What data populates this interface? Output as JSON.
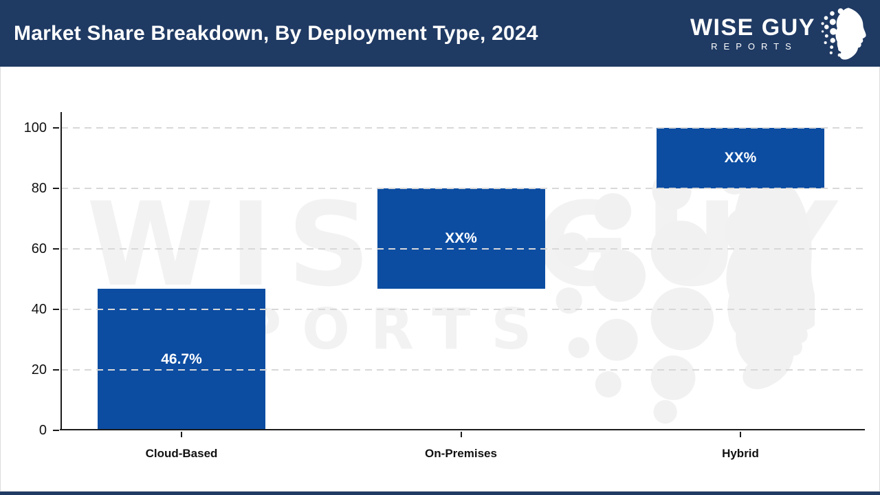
{
  "header": {
    "title": "Market Share Breakdown, By Deployment Type, 2024",
    "logo": {
      "line1": "WISE GUY",
      "line2": "REPORTS",
      "icon": "dotted-face-profile-icon"
    }
  },
  "watermark": {
    "line1": "WISE GUY",
    "line2": "REPORTS",
    "icon": "dotted-face-profile-watermark"
  },
  "colors": {
    "header_bg": "#1f3a63",
    "footer_bar": "#1f3a63",
    "bar": "#0c4da2",
    "gridline": "#d8d8d8",
    "axis": "#1a1a1a",
    "tick_label": "#111111",
    "bar_label": "#ffffff",
    "watermark": "#f2f2f2",
    "background": "#ffffff"
  },
  "chart_data": {
    "type": "bar",
    "subtype": "waterfall",
    "title": "Market Share Breakdown, By Deployment Type, 2024",
    "categories": [
      "Cloud-Based",
      "On-Premises",
      "Hybrid"
    ],
    "bars": [
      {
        "category": "Cloud-Based",
        "start": 0,
        "end": 46.7,
        "label": "46.7%"
      },
      {
        "category": "On-Premises",
        "start": 46.7,
        "end": 80,
        "label": "XX%"
      },
      {
        "category": "Hybrid",
        "start": 80,
        "end": 100,
        "label": "XX%"
      }
    ],
    "bar_labels": [
      "46.7%",
      "XX%",
      "XX%"
    ],
    "ylim": [
      0,
      100
    ],
    "yticks": [
      0,
      20,
      40,
      60,
      80,
      100
    ],
    "xlabel": "",
    "ylabel": "",
    "grid": "horizontal-dashed",
    "legend": "none",
    "bar_color": "#0c4da2"
  }
}
